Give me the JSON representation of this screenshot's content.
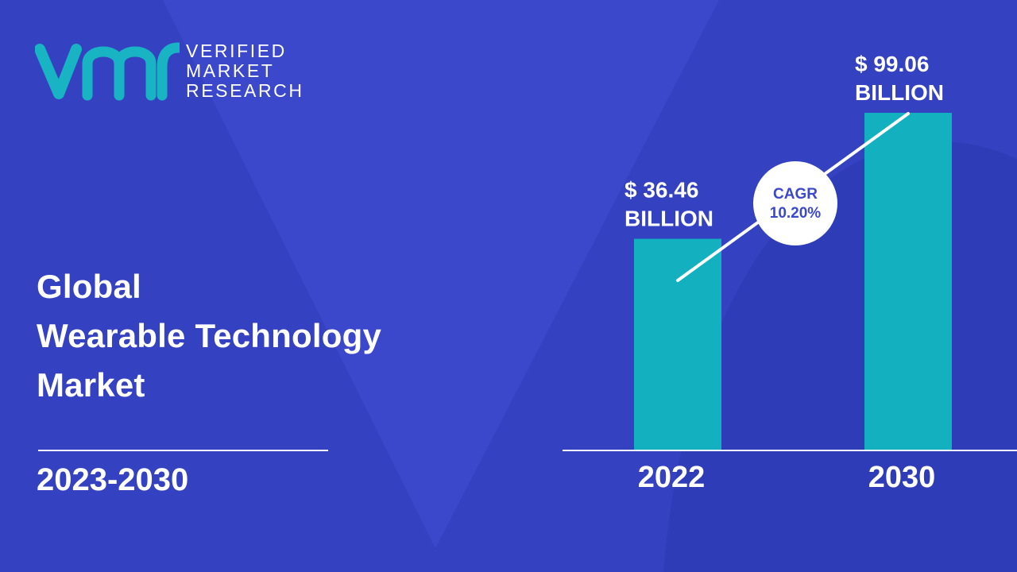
{
  "brand": {
    "line1": "VERIFIED",
    "line2": "MARKET",
    "line3": "RESEARCH",
    "colors": {
      "teal": "#19b4c4",
      "background": "#3b48cc",
      "overlay": "#2b37ad",
      "bar": "#13b0c0",
      "text": "#ffffff"
    }
  },
  "title": {
    "line1": "Global",
    "line2": "Wearable Technology",
    "line3": "Market"
  },
  "period": "2023-2030",
  "chart_data": {
    "type": "bar",
    "categories": [
      "2022",
      "2030"
    ],
    "values": [
      36.46,
      99.06
    ],
    "value_labels": [
      {
        "line1": "$ 36.46",
        "line2": "BILLION"
      },
      {
        "line1": "$ 99.06",
        "line2": "BILLION"
      }
    ],
    "cagr": {
      "line1": "CAGR",
      "line2": "10.20%"
    },
    "unit": "BILLION",
    "ylim": [
      0,
      115
    ]
  }
}
